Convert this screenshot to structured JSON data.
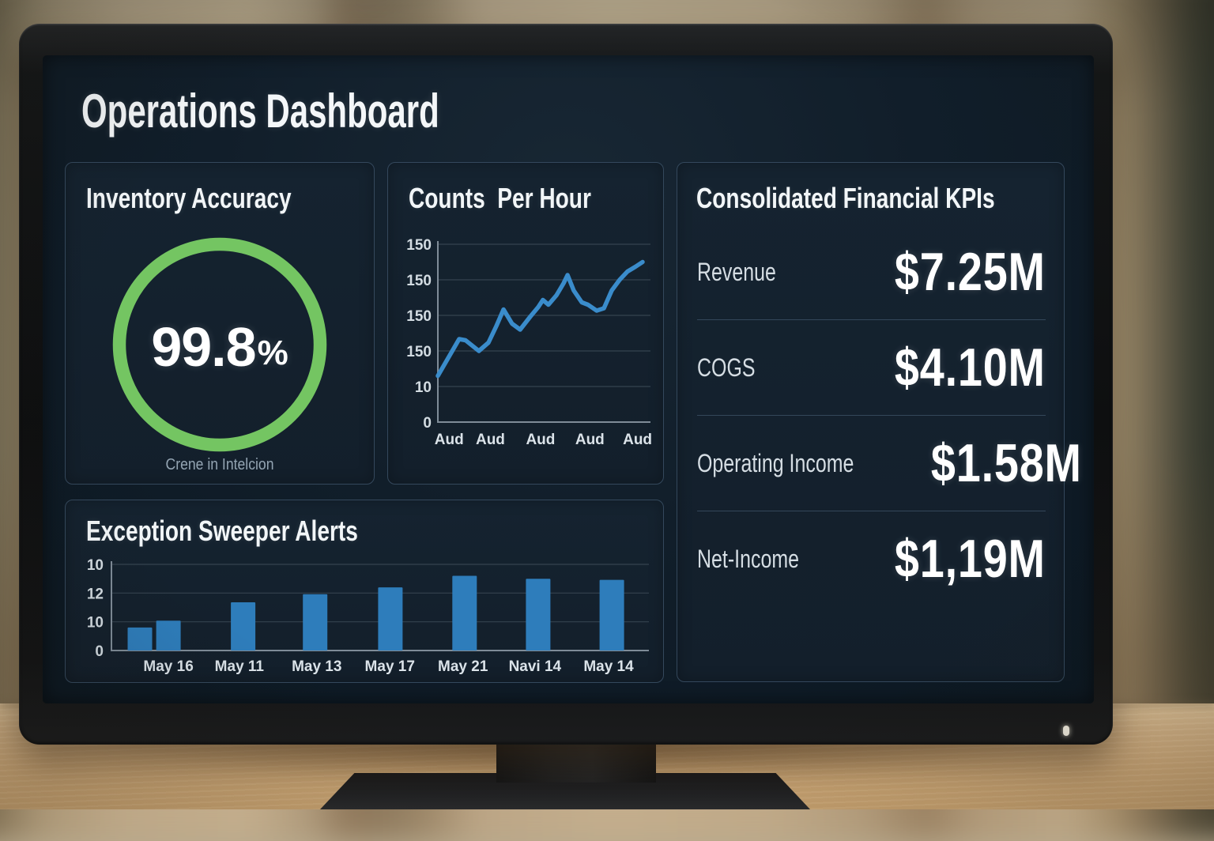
{
  "screen": {
    "title": "Operations Dashboard"
  },
  "monitor": {
    "power_led_color": "#f1ecdf"
  },
  "panels": {
    "inventory": {
      "title": "Inventory Accuracy",
      "value": "99.8",
      "unit": "%",
      "caption": "Crene in Intelcion",
      "ring_color": "#74c562"
    },
    "counts": {
      "title": "Counts  Per Hour"
    },
    "kpis": {
      "title": "Consolidated Financial KPIs",
      "rows": [
        {
          "label": "Revenue",
          "value": "$7.25M"
        },
        {
          "label": "COGS",
          "value": "$4.10M"
        },
        {
          "label": "Operating Income",
          "value": "$1.58M"
        },
        {
          "label": "Net-Income",
          "value": "$1,19M"
        }
      ]
    },
    "alerts": {
      "title": "Exception Sweeper Alerts"
    }
  },
  "chart_data": [
    {
      "id": "counts_per_hour",
      "type": "line",
      "title": "Counts  Per Hour",
      "ylabel": "",
      "xlabel": "",
      "ylim": [
        0,
        150
      ],
      "grid": true,
      "line_color": "#3a8ccb",
      "axis_color": "#7f8c98",
      "grid_color": "#34434f",
      "tick_color": "#d3dce2",
      "y_ticks_top_to_bottom": [
        "150",
        "150",
        "150",
        "150",
        "10",
        "0"
      ],
      "x_tick_labels": [
        "Aud",
        "Aud",
        "Aud",
        "Aud",
        "Aud"
      ],
      "x_tick_pct": [
        5.3,
        24.7,
        48.3,
        71.5,
        93.9
      ],
      "points_x_pct_value": [
        [
          0,
          39
        ],
        [
          10,
          70
        ],
        [
          13,
          69
        ],
        [
          19.3,
          60
        ],
        [
          23.8,
          67
        ],
        [
          27.5,
          81
        ],
        [
          30.9,
          95
        ],
        [
          34.9,
          83
        ],
        [
          38.7,
          78
        ],
        [
          43.5,
          89
        ],
        [
          47.2,
          97
        ],
        [
          49.4,
          103
        ],
        [
          52,
          99
        ],
        [
          55.8,
          107
        ],
        [
          59.1,
          117
        ],
        [
          61,
          124
        ],
        [
          63.9,
          111
        ],
        [
          67.7,
          101
        ],
        [
          70.6,
          99
        ],
        [
          74.7,
          94
        ],
        [
          78.1,
          96
        ],
        [
          81.8,
          111
        ],
        [
          85.5,
          120
        ],
        [
          89.2,
          127
        ],
        [
          92.9,
          131
        ],
        [
          96.3,
          135
        ]
      ]
    },
    {
      "id": "exception_sweeper_alerts",
      "type": "bar",
      "title": "Exception Sweeper Alerts",
      "ylabel": "",
      "xlabel": "",
      "ylim": [
        0,
        15
      ],
      "grid": true,
      "bar_color": "#2e7dbb",
      "axis_color": "#7f8c98",
      "grid_color": "#34434f",
      "tick_color": "#d3dce2",
      "y_ticks_top_to_bottom": [
        "10",
        "12",
        "10",
        "0"
      ],
      "x_tick_labels": [
        "May 16",
        "May 11",
        "May 13",
        "May 17",
        "May 21",
        "Navi 14",
        "May 14"
      ],
      "x_tick_pct": [
        10.6,
        23.8,
        38.2,
        51.8,
        65.4,
        78.8,
        92.5
      ],
      "bars_x_pct_value": [
        [
          5.3,
          4.0
        ],
        [
          10.6,
          5.2
        ],
        [
          24.5,
          8.4
        ],
        [
          37.9,
          9.8
        ],
        [
          51.9,
          11.0
        ],
        [
          65.7,
          13.0
        ],
        [
          79.4,
          12.5
        ],
        [
          93.1,
          12.3
        ]
      ]
    },
    {
      "id": "inventory_accuracy",
      "type": "gauge",
      "title": "Inventory Accuracy",
      "value_pct": 99.8,
      "display_value": "99.8%",
      "caption": "Crene in Intelcion",
      "ring_color": "#74c562"
    }
  ]
}
